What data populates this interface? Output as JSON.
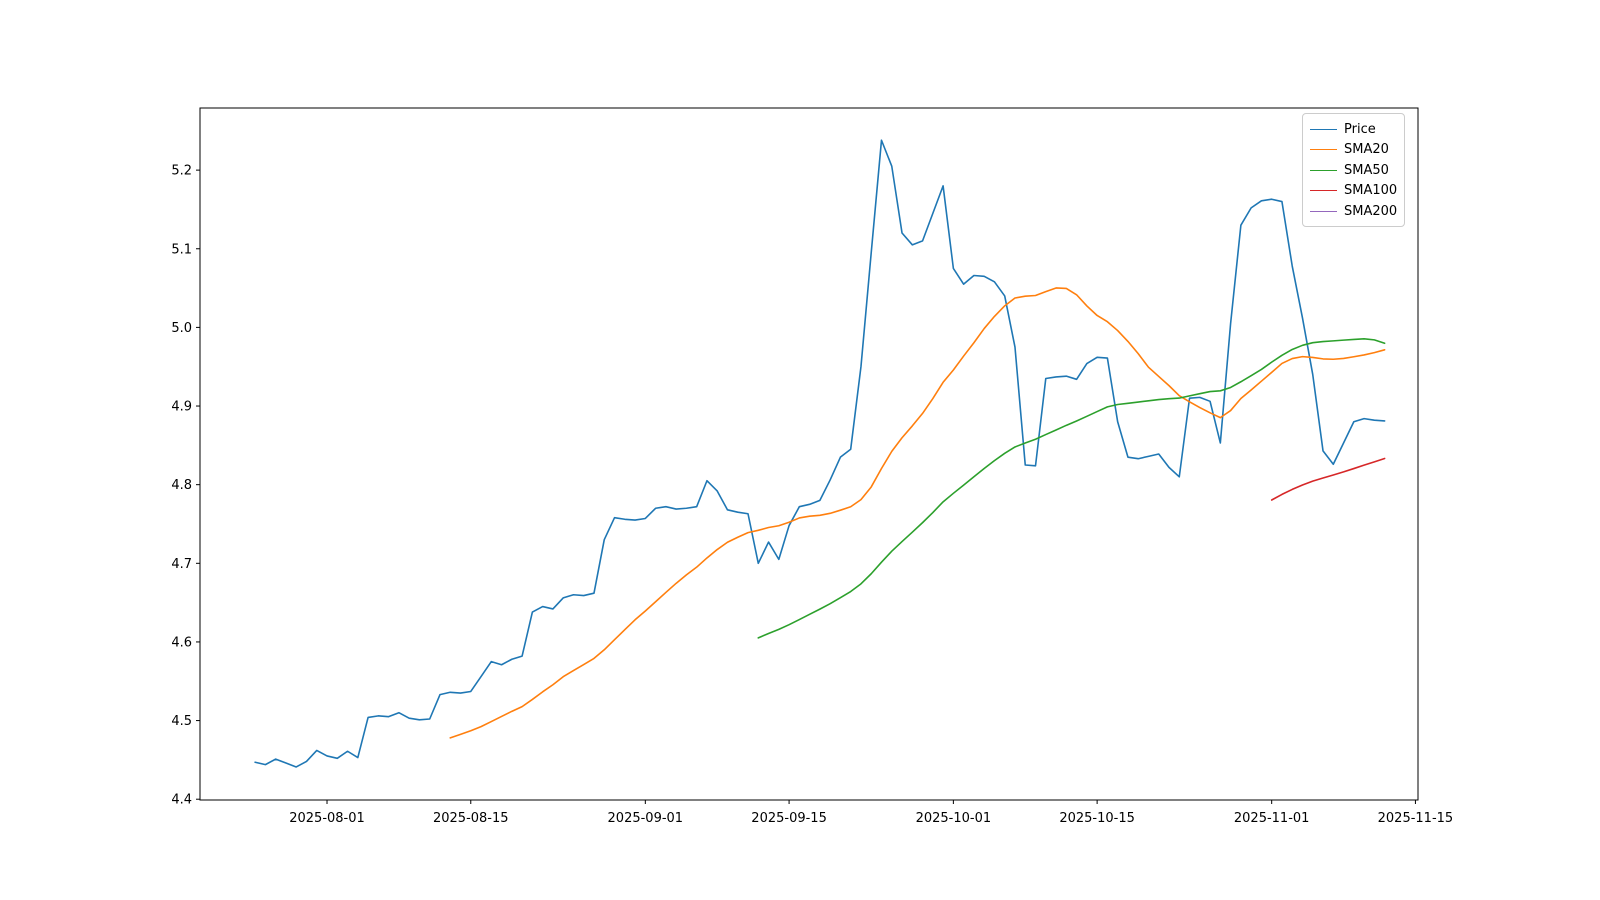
{
  "chart_data": {
    "type": "line",
    "title": "",
    "xlabel": "",
    "ylabel": "",
    "frequency": "daily",
    "start_date": "2025-07-25",
    "end_date": "2025-11-12",
    "grid": false,
    "legend_position": "upper right",
    "series": [
      {
        "name": "Price",
        "color": "#1f77b4",
        "window": 1
      },
      {
        "name": "SMA20",
        "color": "#ff7f0e",
        "window": 20
      },
      {
        "name": "SMA50",
        "color": "#2ca02c",
        "window": 50
      },
      {
        "name": "SMA100",
        "color": "#d62728",
        "window": 100
      },
      {
        "name": "SMA200",
        "color": "#9467bd",
        "window": 200
      }
    ],
    "price": [
      4.447,
      4.444,
      4.451,
      4.446,
      4.441,
      4.448,
      4.462,
      4.455,
      4.452,
      4.461,
      4.453,
      4.504,
      4.506,
      4.505,
      4.51,
      4.503,
      4.501,
      4.502,
      4.533,
      4.536,
      4.535,
      4.537,
      4.556,
      4.575,
      4.571,
      4.578,
      4.582,
      4.638,
      4.645,
      4.642,
      4.656,
      4.66,
      4.659,
      4.662,
      4.73,
      4.758,
      4.756,
      4.755,
      4.757,
      4.77,
      4.772,
      4.769,
      4.77,
      4.772,
      4.805,
      4.792,
      4.768,
      4.765,
      4.763,
      4.7,
      4.727,
      4.705,
      4.748,
      4.772,
      4.775,
      4.78,
      4.806,
      4.835,
      4.845,
      4.95,
      5.095,
      5.238,
      5.205,
      5.12,
      5.105,
      5.11,
      5.145,
      5.18,
      5.075,
      5.055,
      5.066,
      5.065,
      5.058,
      5.04,
      4.975,
      4.825,
      4.824,
      4.935,
      4.937,
      4.938,
      4.934,
      4.954,
      4.962,
      4.961,
      4.88,
      4.835,
      4.833,
      4.836,
      4.839,
      4.822,
      4.81,
      4.91,
      4.911,
      4.906,
      4.853,
      5.005,
      5.13,
      5.152,
      5.161,
      5.163,
      5.16,
      5.078,
      5.012,
      4.94,
      4.843,
      4.826,
      4.853,
      4.88,
      4.884,
      4.882,
      4.881
    ],
    "ylim": [
      4.399,
      5.279
    ],
    "xlim_day_index": [
      -5.37,
      113.25
    ],
    "yticks": [
      {
        "label": "4.4",
        "value": 4.4
      },
      {
        "label": "4.5",
        "value": 4.5
      },
      {
        "label": "4.6",
        "value": 4.6
      },
      {
        "label": "4.7",
        "value": 4.7
      },
      {
        "label": "4.8",
        "value": 4.8
      },
      {
        "label": "4.9",
        "value": 4.9
      },
      {
        "label": "5.0",
        "value": 5.0
      },
      {
        "label": "5.1",
        "value": 5.1
      },
      {
        "label": "5.2",
        "value": 5.2
      }
    ],
    "xticks": [
      {
        "label": "2025-08-01",
        "day_index": 7
      },
      {
        "label": "2025-08-15",
        "day_index": 21
      },
      {
        "label": "2025-09-01",
        "day_index": 38
      },
      {
        "label": "2025-09-15",
        "day_index": 52
      },
      {
        "label": "2025-10-01",
        "day_index": 68
      },
      {
        "label": "2025-10-15",
        "day_index": 82
      },
      {
        "label": "2025-11-01",
        "day_index": 99
      },
      {
        "label": "2025-11-15",
        "day_index": 113
      }
    ]
  }
}
